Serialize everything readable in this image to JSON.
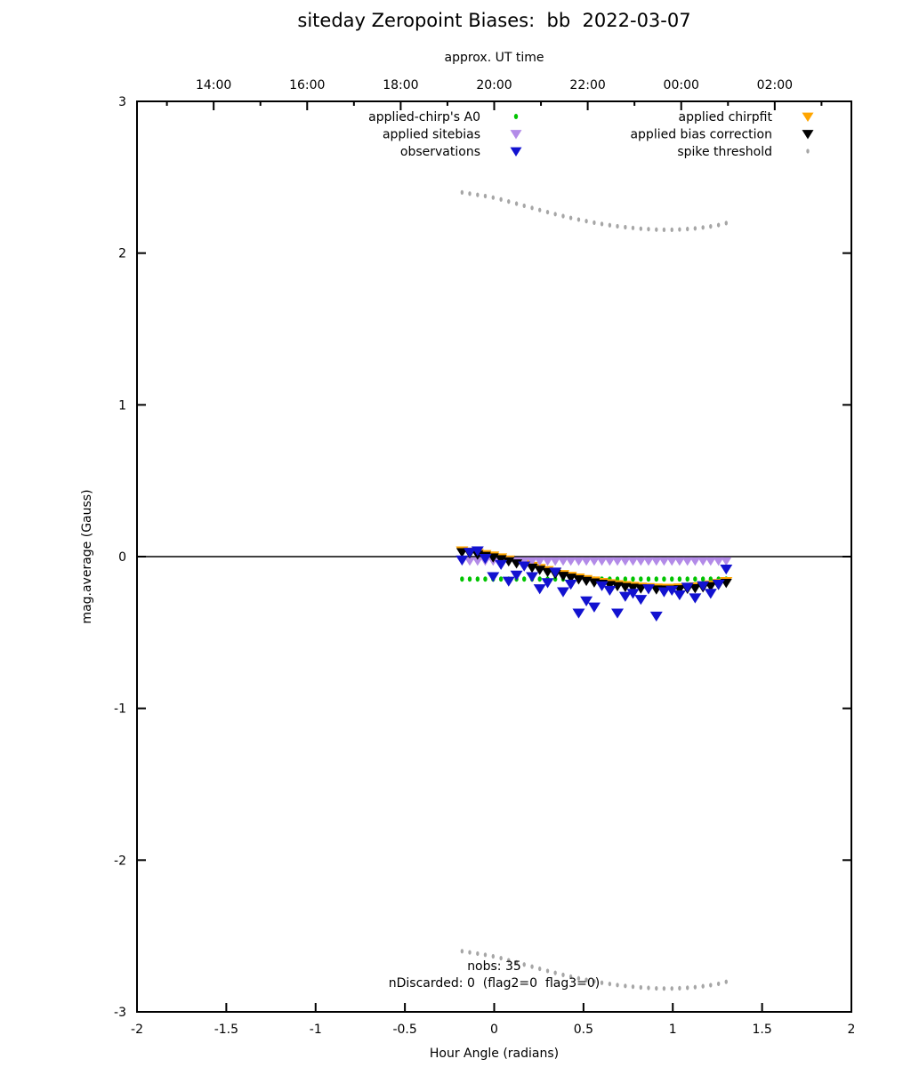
{
  "title": "siteday Zeropoint Biases:  bb  2022-03-07",
  "top_axis": {
    "label": "approx. UT time"
  },
  "bottom_axis": {
    "label": "Hour Angle (radians)"
  },
  "left_axis": {
    "label": "mag.average (Gauss)"
  },
  "annotations": {
    "nobs": "nobs: 35",
    "ndiscarded": "nDiscarded: 0  (flag2=0  flag3=0)"
  },
  "legend": {
    "left": [
      {
        "label": "applied-chirp's A0",
        "marker": "dot",
        "color": "#00c400"
      },
      {
        "label": "applied sitebias",
        "marker": "triangle-down",
        "color": "#b38be8"
      },
      {
        "label": "observations",
        "marker": "triangle-down",
        "color": "#1212d0"
      }
    ],
    "right": [
      {
        "label": "applied chirpfit",
        "marker": "triangle-down",
        "color": "#ffa500"
      },
      {
        "label": "applied bias correction",
        "marker": "triangle-down",
        "color": "#000000"
      },
      {
        "label": "spike threshold",
        "marker": "small-dot",
        "color": "#a6a6a6"
      }
    ]
  },
  "chart_data": {
    "type": "scatter",
    "title": "siteday Zeropoint Biases:  bb  2022-03-07",
    "xlabel": "Hour Angle (radians)",
    "x2label": "approx. UT time",
    "ylabel": "mag.average (Gauss)",
    "xlim": [
      -2,
      2
    ],
    "ylim": [
      -3,
      3
    ],
    "grid": false,
    "x_ticks": [
      -2,
      -1.5,
      -1,
      -0.5,
      0,
      0.5,
      1,
      1.5,
      2
    ],
    "y_ticks": [
      -3,
      -2,
      -1,
      0,
      1,
      2,
      3
    ],
    "radians_per_hour": 0.2618,
    "x2_major": [
      {
        "hour": 14,
        "label": "14:00"
      },
      {
        "hour": 16,
        "label": "16:00"
      },
      {
        "hour": 18,
        "label": "18:00"
      },
      {
        "hour": 20,
        "label": "20:00"
      },
      {
        "hour": 22,
        "label": "22:00"
      },
      {
        "hour": 24,
        "label": "00:00"
      },
      {
        "hour": 26,
        "label": "02:00"
      }
    ],
    "x2_minor_hours": [
      13,
      15,
      17,
      19,
      21,
      23,
      25,
      27
    ],
    "x": [
      -0.18,
      -0.137,
      -0.093,
      -0.05,
      -0.006,
      0.038,
      0.081,
      0.125,
      0.168,
      0.212,
      0.255,
      0.299,
      0.342,
      0.386,
      0.429,
      0.473,
      0.516,
      0.56,
      0.603,
      0.647,
      0.69,
      0.734,
      0.777,
      0.821,
      0.864,
      0.908,
      0.951,
      0.995,
      1.038,
      1.082,
      1.125,
      1.169,
      1.212,
      1.256,
      1.299
    ],
    "series": [
      {
        "name": "spike threshold (upper)",
        "legend": "spike threshold",
        "marker": "small-dot",
        "color": "#a6a6a6",
        "values": [
          2.4,
          2.392,
          2.384,
          2.376,
          2.366,
          2.354,
          2.34,
          2.326,
          2.312,
          2.298,
          2.284,
          2.27,
          2.257,
          2.244,
          2.232,
          2.221,
          2.211,
          2.201,
          2.192,
          2.184,
          2.177,
          2.171,
          2.166,
          2.161,
          2.158,
          2.155,
          2.154,
          2.154,
          2.156,
          2.159,
          2.163,
          2.169,
          2.176,
          2.185,
          2.198
        ]
      },
      {
        "name": "spike threshold (lower)",
        "legend": "spike threshold",
        "marker": "small-dot",
        "color": "#a6a6a6",
        "values": [
          -2.6,
          -2.608,
          -2.616,
          -2.624,
          -2.634,
          -2.646,
          -2.66,
          -2.674,
          -2.688,
          -2.702,
          -2.716,
          -2.73,
          -2.743,
          -2.756,
          -2.768,
          -2.779,
          -2.789,
          -2.799,
          -2.808,
          -2.816,
          -2.823,
          -2.829,
          -2.834,
          -2.839,
          -2.842,
          -2.845,
          -2.846,
          -2.846,
          -2.844,
          -2.841,
          -2.837,
          -2.831,
          -2.824,
          -2.815,
          -2.802
        ]
      },
      {
        "name": "applied-chirp's A0",
        "marker": "dot",
        "color": "#00c400",
        "values": [
          -0.148,
          -0.148,
          -0.148,
          -0.148,
          -0.148,
          -0.148,
          -0.148,
          -0.148,
          -0.148,
          -0.148,
          -0.148,
          -0.148,
          -0.148,
          -0.148,
          -0.148,
          -0.148,
          -0.148,
          -0.148,
          -0.148,
          -0.148,
          -0.148,
          -0.148,
          -0.148,
          -0.148,
          -0.148,
          -0.148,
          -0.148,
          -0.148,
          -0.148,
          -0.148,
          -0.148,
          -0.148,
          -0.148,
          -0.148,
          -0.148
        ]
      },
      {
        "name": "applied chirpfit",
        "marker": "triangle-down",
        "color": "#ffa500",
        "size": 14,
        "values": [
          0.04,
          0.032,
          0.024,
          0.016,
          0.006,
          -0.006,
          -0.02,
          -0.034,
          -0.048,
          -0.062,
          -0.076,
          -0.09,
          -0.103,
          -0.116,
          -0.128,
          -0.139,
          -0.149,
          -0.159,
          -0.168,
          -0.176,
          -0.183,
          -0.189,
          -0.194,
          -0.199,
          -0.202,
          -0.205,
          -0.206,
          -0.206,
          -0.204,
          -0.201,
          -0.197,
          -0.191,
          -0.184,
          -0.175,
          -0.162
        ]
      },
      {
        "name": "applied sitebias",
        "marker": "triangle-down",
        "color": "#b38be8",
        "size": 12,
        "values": [
          -0.028,
          -0.028,
          -0.028,
          -0.028,
          -0.028,
          -0.028,
          -0.028,
          -0.028,
          -0.028,
          -0.028,
          -0.028,
          -0.028,
          -0.028,
          -0.028,
          -0.028,
          -0.028,
          -0.028,
          -0.028,
          -0.028,
          -0.028,
          -0.028,
          -0.028,
          -0.028,
          -0.028,
          -0.028,
          -0.028,
          -0.028,
          -0.028,
          -0.028,
          -0.028,
          -0.028,
          -0.028,
          -0.028,
          -0.028,
          -0.028
        ]
      },
      {
        "name": "applied bias correction",
        "marker": "triangle-down",
        "color": "#000000",
        "size": 13,
        "values": [
          0.03,
          0.022,
          0.014,
          0.006,
          -0.004,
          -0.016,
          -0.03,
          -0.044,
          -0.058,
          -0.072,
          -0.086,
          -0.1,
          -0.113,
          -0.126,
          -0.138,
          -0.149,
          -0.159,
          -0.169,
          -0.178,
          -0.186,
          -0.193,
          -0.199,
          -0.204,
          -0.209,
          -0.212,
          -0.215,
          -0.216,
          -0.216,
          -0.214,
          -0.211,
          -0.207,
          -0.201,
          -0.194,
          -0.185,
          -0.172
        ]
      },
      {
        "name": "observations",
        "marker": "triangle-down",
        "color": "#1212d0",
        "size": 14,
        "values": [
          -0.02,
          0.03,
          0.04,
          -0.01,
          -0.13,
          -0.05,
          -0.16,
          -0.12,
          -0.06,
          -0.13,
          -0.21,
          -0.17,
          -0.1,
          -0.23,
          -0.18,
          -0.37,
          -0.29,
          -0.33,
          -0.19,
          -0.22,
          -0.37,
          -0.26,
          -0.24,
          -0.28,
          -0.21,
          -0.39,
          -0.23,
          -0.22,
          -0.25,
          -0.2,
          -0.27,
          -0.19,
          -0.24,
          -0.18,
          -0.08
        ]
      }
    ]
  }
}
